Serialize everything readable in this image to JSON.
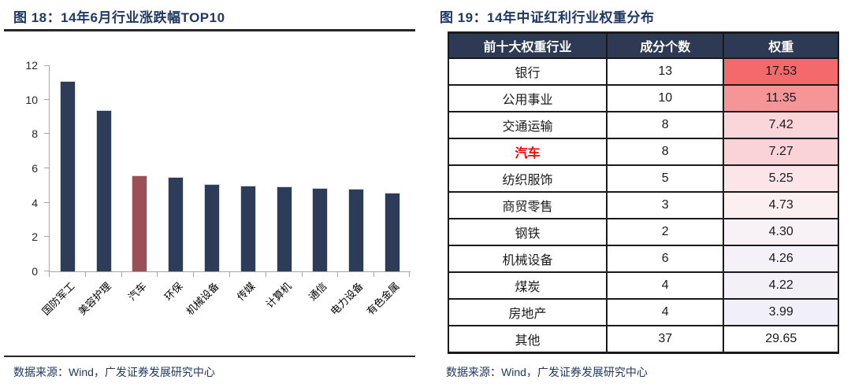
{
  "figure_left": {
    "title": "图 18：14年6月行业涨跌幅TOP10",
    "source": "数据来源：Wind，广发证券发展研究中心"
  },
  "figure_right": {
    "title": "图 19：14年中证红利行业权重分布",
    "source": "数据来源：Wind，广发证券发展研究中心"
  },
  "chart_data": [
    {
      "type": "bar",
      "title": "14年6月行业涨跌幅TOP10",
      "categories": [
        "国防军工",
        "美容护理",
        "汽车",
        "环保",
        "机械设备",
        "传媒",
        "计算机",
        "通信",
        "电力设备",
        "有色金属"
      ],
      "values": [
        11.1,
        9.4,
        5.6,
        5.5,
        5.1,
        5.0,
        4.95,
        4.85,
        4.8,
        4.6
      ],
      "highlight_index": 2,
      "bar_color": "#2d3c59",
      "highlight_color": "#9a5055",
      "axis_color": "#a6a6a6",
      "tick_label_color": "#262626",
      "xlabel": "",
      "ylabel": "",
      "ylim": [
        0,
        12
      ],
      "yticks": [
        0,
        2,
        4,
        6,
        8,
        10,
        12
      ],
      "grid": false,
      "legend": false
    },
    {
      "type": "table",
      "title": "14年中证红利行业权重分布",
      "headers": [
        "前十大权重行业",
        "成分个数",
        "权重"
      ],
      "header_bg": "#2e3a54",
      "header_text_color": "#ffffff",
      "highlight_row": 3,
      "highlight_text_color": "#ff0000",
      "rows": [
        {
          "industry": "银行",
          "count": "13",
          "weight": "17.53",
          "weight_bg": "#f4696b"
        },
        {
          "industry": "公用事业",
          "count": "10",
          "weight": "11.35",
          "weight_bg": "#f69597"
        },
        {
          "industry": "交通运输",
          "count": "8",
          "weight": "7.42",
          "weight_bg": "#fad5da"
        },
        {
          "industry": "汽车",
          "count": "8",
          "weight": "7.27",
          "weight_bg": "#f9d3d8"
        },
        {
          "industry": "纺织服饰",
          "count": "5",
          "weight": "5.25",
          "weight_bg": "#fbe5e9"
        },
        {
          "industry": "商贸零售",
          "count": "3",
          "weight": "4.73",
          "weight_bg": "#fceff1"
        },
        {
          "industry": "钢铁",
          "count": "2",
          "weight": "4.30",
          "weight_bg": "#f8f2f7"
        },
        {
          "industry": "机械设备",
          "count": "6",
          "weight": "4.26",
          "weight_bg": "#f5f1f8"
        },
        {
          "industry": "煤炭",
          "count": "4",
          "weight": "4.22",
          "weight_bg": "#f3f0f8"
        },
        {
          "industry": "房地产",
          "count": "4",
          "weight": "3.99",
          "weight_bg": "#f1eff9"
        },
        {
          "industry": "其他",
          "count": "37",
          "weight": "29.65",
          "weight_bg": "#ffffff"
        }
      ]
    }
  ]
}
